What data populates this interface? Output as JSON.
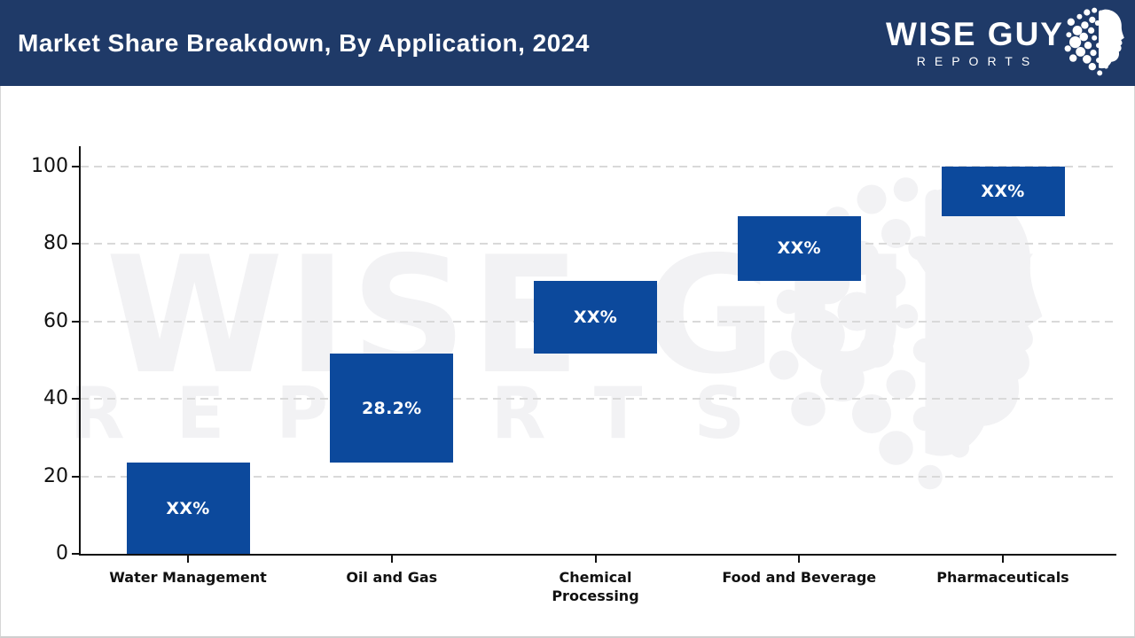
{
  "header": {
    "title": "Market Share Breakdown, By Application, 2024",
    "logo": {
      "line1": "WISE GUY",
      "line2": "REPORTS"
    }
  },
  "watermark": {
    "line1": "WISE GUY",
    "line2": "REPORTS"
  },
  "colors": {
    "header_bg": "#1f3a68",
    "bar": "#0c499c",
    "bar_label": "#ffffff",
    "grid": "#d9d9d9",
    "axis": "#111111",
    "watermark": "#f2f2f4"
  },
  "chart_data": {
    "type": "bar",
    "subtype": "waterfall",
    "title": "Market Share Breakdown, By Application, 2024",
    "xlabel": "",
    "ylabel": "",
    "ylim": [
      0,
      105
    ],
    "grid": "horizontal-dashed",
    "legend": "none",
    "y_ticks": [
      0,
      20,
      40,
      60,
      80,
      100
    ],
    "categories": [
      "Water Management",
      "Oil and Gas",
      "Chemical\nProcessing",
      "Food and Beverage",
      "Pharmaceuticals"
    ],
    "values": [
      23.5,
      28.2,
      18.8,
      16.7,
      12.8
    ],
    "segments": [
      {
        "category": "Water Management",
        "start": 0,
        "end": 23.5,
        "label": "XX%"
      },
      {
        "category": "Oil and Gas",
        "start": 23.5,
        "end": 51.7,
        "label": "28.2%"
      },
      {
        "category": "Chemical Processing",
        "start": 51.7,
        "end": 70.5,
        "label": "XX%"
      },
      {
        "category": "Food and Beverage",
        "start": 70.5,
        "end": 87.2,
        "label": "XX%"
      },
      {
        "category": "Pharmaceuticals",
        "start": 87.2,
        "end": 100,
        "label": "XX%"
      }
    ]
  }
}
